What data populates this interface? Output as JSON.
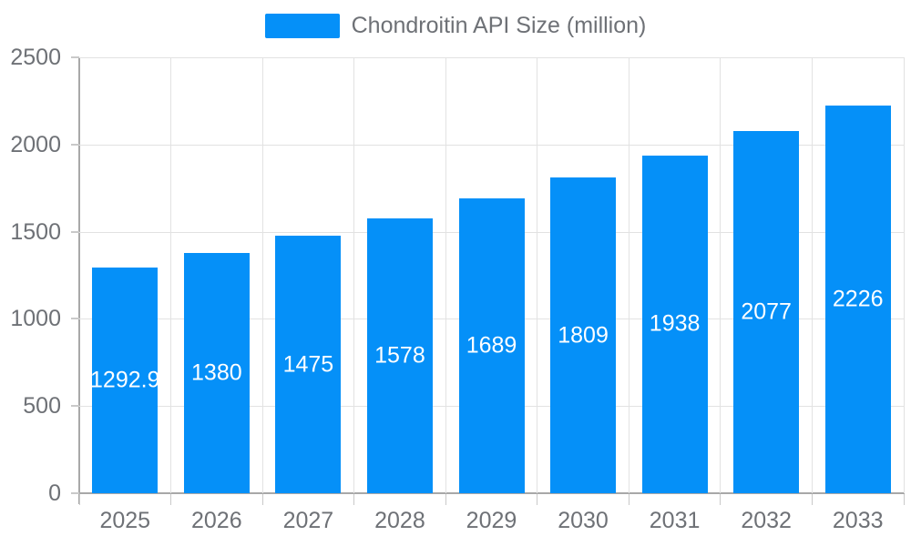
{
  "chart_data": {
    "type": "bar",
    "title": "",
    "series_name": "Chondroitin API Size (million)",
    "categories": [
      "2025",
      "2026",
      "2027",
      "2028",
      "2029",
      "2030",
      "2031",
      "2032",
      "2033"
    ],
    "values": [
      1292.9,
      1380,
      1475,
      1578,
      1689,
      1809,
      1938,
      2077,
      2226
    ],
    "xlabel": "",
    "ylabel": "",
    "ylim": [
      0,
      2500
    ],
    "ytick_step": 500,
    "yticks": [
      0,
      500,
      1000,
      1500,
      2000,
      2500
    ],
    "grid": true,
    "legend_position": "top",
    "value_label_position": "inside-middle"
  },
  "colors": {
    "bar": "#0590f8",
    "grid": "#e2e2e2",
    "axis": "#a8a8a8",
    "tick": "#c9c9c9",
    "text": "#6e7176",
    "value_label": "#ffffff",
    "background": "#ffffff"
  }
}
